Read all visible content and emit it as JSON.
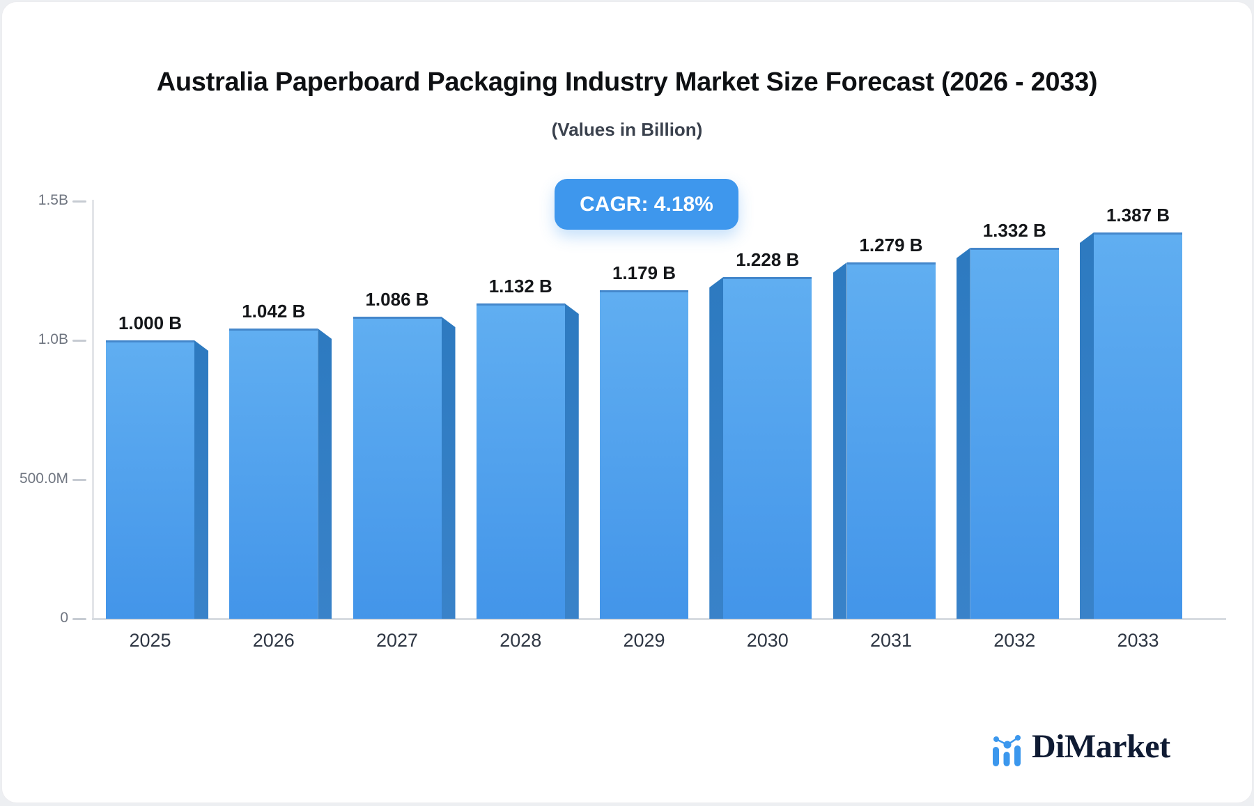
{
  "header": {
    "title": "Australia Paperboard Packaging Industry Market Size Forecast (2026 - 2033)",
    "subtitle": "(Values in Billion)"
  },
  "badge": {
    "label": "CAGR: 4.18%",
    "background": "#3e97ed",
    "text_color": "#ffffff"
  },
  "chart_data": {
    "type": "bar",
    "title": "Australia Paperboard Packaging Industry Market Size Forecast (2026 - 2033)",
    "subtitle": "(Values in Billion)",
    "categories": [
      "2025",
      "2026",
      "2027",
      "2028",
      "2029",
      "2030",
      "2031",
      "2032",
      "2033"
    ],
    "values": [
      1.0,
      1.042,
      1.086,
      1.132,
      1.179,
      1.228,
      1.279,
      1.332,
      1.387
    ],
    "value_labels": [
      "1.000 B",
      "1.042 B",
      "1.086 B",
      "1.132 B",
      "1.179 B",
      "1.228 B",
      "1.279 B",
      "1.332 B",
      "1.387 B"
    ],
    "unit": "Billion",
    "xlabel": "",
    "ylabel": "",
    "ylim": [
      0,
      1.5
    ],
    "y_ticks": [
      {
        "value": 0,
        "label": "0"
      },
      {
        "value": 0.5,
        "label": "500.0M"
      },
      {
        "value": 1.0,
        "label": "1.0B"
      },
      {
        "value": 1.5,
        "label": "1.5B"
      }
    ],
    "grid": false,
    "legend": "none",
    "bar_color_top": "#60aef1",
    "bar_color_bottom": "#4395e9",
    "bar_side_color": "#2d7ac0"
  },
  "logo": {
    "text": "DiMarket",
    "icon": "bar-chart-logo-icon",
    "text_color": "#0f1b33",
    "accent_color": "#3b97ed"
  }
}
